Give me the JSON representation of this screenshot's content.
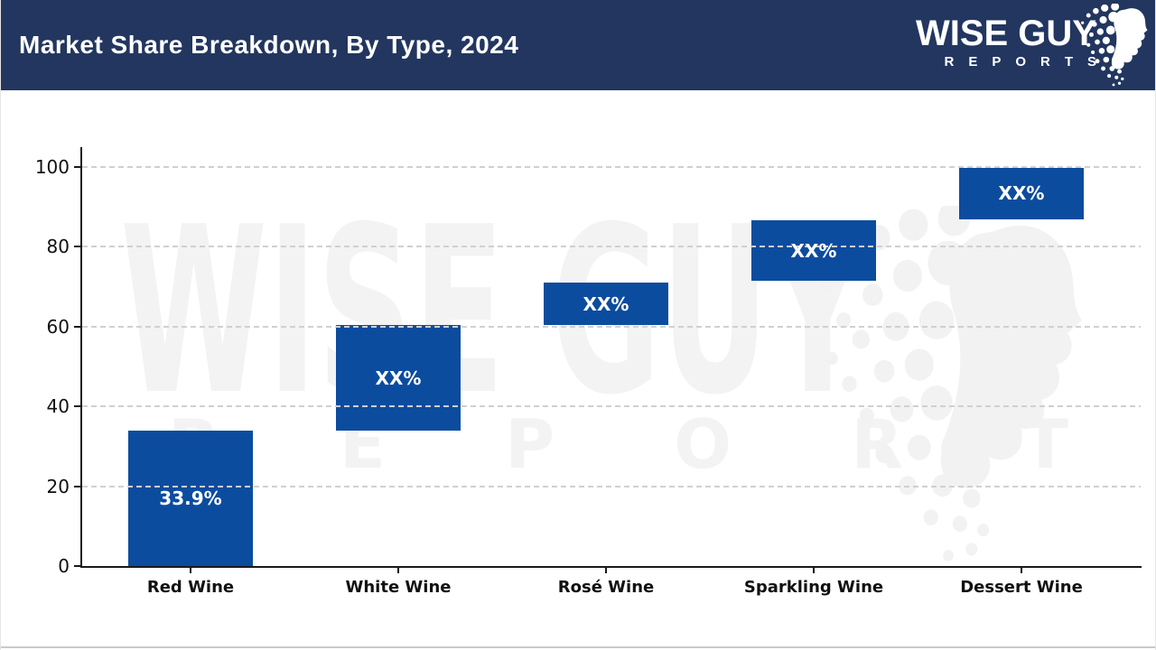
{
  "header": {
    "title": "Market Share Breakdown, By Type, 2024",
    "brand_line1": "WISE GUY",
    "brand_line2": "REPORTS",
    "brand_mark_icon": "dotted-face-profile-logo"
  },
  "watermark": {
    "line1": "WISE GUY",
    "line2": "R E P O R T S"
  },
  "chart_data": {
    "type": "bar",
    "subtype": "floating-waterfall",
    "title": "Market Share Breakdown, By Type, 2024",
    "xlabel": "",
    "ylabel": "",
    "ylim": [
      0,
      100
    ],
    "yticks": [
      0,
      20,
      40,
      60,
      80,
      100
    ],
    "grid": "horizontal-dashed",
    "legend": "none",
    "bar_color": "#0c4c9f",
    "label_color": "#ffffff",
    "categories": [
      "Red Wine",
      "White Wine",
      "Rosé Wine",
      "Sparkling Wine",
      "Dessert Wine"
    ],
    "segments": [
      {
        "category": "Red Wine",
        "base": 0,
        "top": 33.9,
        "value": 33.9,
        "value_label": "33.9%"
      },
      {
        "category": "White Wine",
        "base": 33.9,
        "top": 60.3,
        "value": 26.4,
        "value_label": "XX%"
      },
      {
        "category": "Rosé Wine",
        "base": 60.3,
        "top": 71.0,
        "value": 10.7,
        "value_label": "XX%"
      },
      {
        "category": "Sparkling Wine",
        "base": 71.4,
        "top": 86.7,
        "value": 15.3,
        "value_label": "XX%"
      },
      {
        "category": "Dessert Wine",
        "base": 86.9,
        "top": 99.8,
        "value": 12.9,
        "value_label": "XX%"
      }
    ]
  },
  "colors": {
    "header_bg": "#22365f",
    "bar": "#0c4c9f",
    "axis": "#1a1a1a",
    "gridline": "#d0d0d0",
    "watermark": "#f2f2f2",
    "bottom_rule": "#c9c9c9"
  }
}
